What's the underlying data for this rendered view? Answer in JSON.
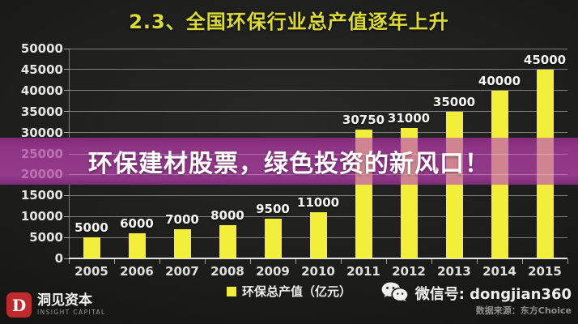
{
  "title": "2.3、全国环保行业总产值逐年上升",
  "overlay_banner": {
    "text": "环保建材股票，绿色投资的新风口！"
  },
  "chart_data": {
    "type": "bar",
    "title": "2.3、全国环保行业总产值逐年上升",
    "categories": [
      "2005",
      "2006",
      "2007",
      "2008",
      "2009",
      "2010",
      "2011",
      "2012",
      "2013",
      "2014",
      "2015"
    ],
    "values": [
      5000,
      6000,
      7000,
      8000,
      9500,
      11000,
      30750,
      31000,
      35000,
      40000,
      45000
    ],
    "series_name": "环保总产值（亿元）",
    "unit": "亿元",
    "xlabel": "",
    "ylabel": "",
    "ylim": [
      0,
      50000
    ],
    "yticks": [
      0,
      5000,
      10000,
      15000,
      20000,
      25000,
      30000,
      35000,
      40000,
      45000,
      50000
    ],
    "grid": true,
    "bar_labels_shown": true,
    "legend_position": "bottom"
  },
  "legend": {
    "label": "环保总产值（亿元）"
  },
  "footer": {
    "logo": {
      "mark": "D",
      "name": "洞见资本",
      "subtitle": "INSIGHT CAPITAL"
    },
    "wechat": {
      "icon": "wechat-icon",
      "label": "微信号: dongjian360"
    },
    "source": "数据来源：东方Choice"
  },
  "colors": {
    "background": "#1d1d1b",
    "title_text": "#dcda38",
    "bar": "#f2ef3a",
    "banner_bg": "#8e3585",
    "banner_text": "#ffffff",
    "bar_under_banner": "#d08490",
    "grid_line": "#d0d0d0",
    "axis_text": "#e6e6e6",
    "value_label": "#f5f5f5",
    "band_axis_text": "#bd73b1",
    "logo_red": "#bf2a2e",
    "footer_text": "#efefef",
    "source_text": "#8f8f8f"
  }
}
